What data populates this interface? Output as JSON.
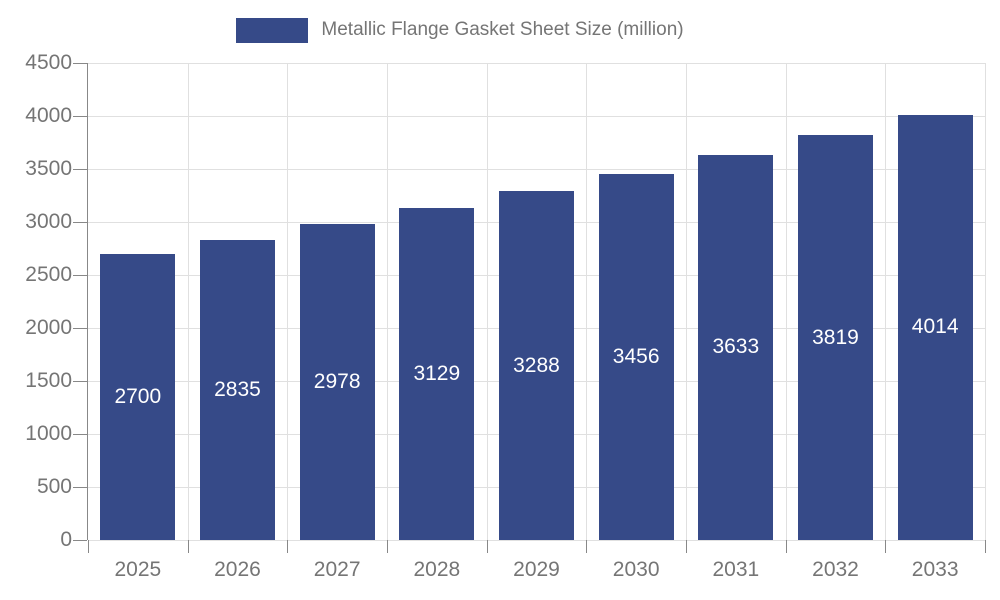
{
  "legend": {
    "label": "Metallic Flange Gasket Sheet Size (million)"
  },
  "chart_data": {
    "type": "bar",
    "title": "Metallic Flange Gasket Sheet Size (million)",
    "categories": [
      "2025",
      "2026",
      "2027",
      "2028",
      "2029",
      "2030",
      "2031",
      "2032",
      "2033"
    ],
    "values": [
      2700,
      2835,
      2978,
      3129,
      3288,
      3456,
      3633,
      3819,
      4014
    ],
    "xlabel": "",
    "ylabel": "",
    "ylim": [
      0,
      4500
    ],
    "yticks": [
      0,
      500,
      1000,
      1500,
      2000,
      2500,
      3000,
      3500,
      4000,
      4500
    ],
    "grid": true,
    "legend_position": "top",
    "colors": {
      "bar": "#364a88",
      "bar_value_text": "#ffffff",
      "axis_text": "#757575",
      "axis_line": "#888888",
      "gridline": "#e0e0e0",
      "background": "#ffffff"
    }
  }
}
